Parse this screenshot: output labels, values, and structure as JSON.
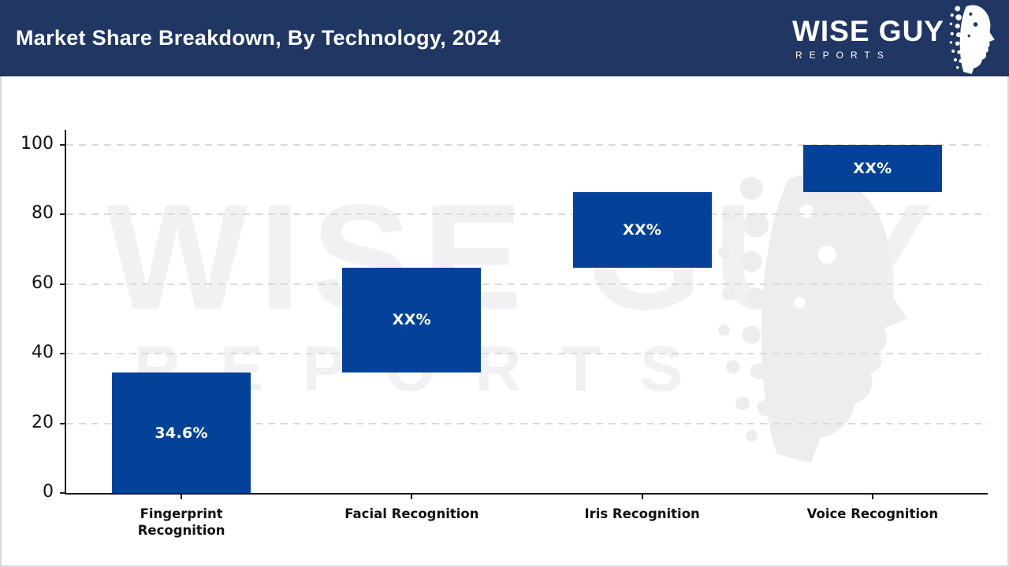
{
  "header": {
    "title": "Market Share Breakdown, By Technology, 2024",
    "logo": {
      "line1": "WISE GUY",
      "line2": "REPORTS"
    }
  },
  "watermark": {
    "line1": "WISE GUY",
    "line2": "REPORTS"
  },
  "colors": {
    "header_bg": "#203663",
    "bar": "#04429A",
    "grid": "#DADADA",
    "axis": "#1C1C1C",
    "watermark": "#F1F1F3"
  },
  "chart_data": {
    "type": "bar",
    "subtype": "floating-waterfall",
    "title": "Market Share Breakdown, By Technology, 2024",
    "categories": [
      "Fingerprint Recognition",
      "Facial Recognition",
      "Iris Recognition",
      "Voice Recognition"
    ],
    "series": [
      {
        "name": "Market share (%)",
        "segments": [
          {
            "category": "Fingerprint Recognition",
            "start": 0,
            "end": 34.6,
            "label": "34.6%"
          },
          {
            "category": "Facial Recognition",
            "start": 34.6,
            "end": 64.8,
            "label": "XX%"
          },
          {
            "category": "Iris Recognition",
            "start": 64.8,
            "end": 86.4,
            "label": "XX%"
          },
          {
            "category": "Voice Recognition",
            "start": 86.4,
            "end": 100,
            "label": "XX%"
          }
        ]
      }
    ],
    "yticks": [
      0,
      20,
      40,
      60,
      80,
      100
    ],
    "ylim": [
      0,
      105
    ],
    "xlabel": "",
    "ylabel": "",
    "grid": "horizontal-dashed",
    "legend": "none",
    "bar_color": "#04429A",
    "bar_label_color": "#FFFFFF"
  }
}
